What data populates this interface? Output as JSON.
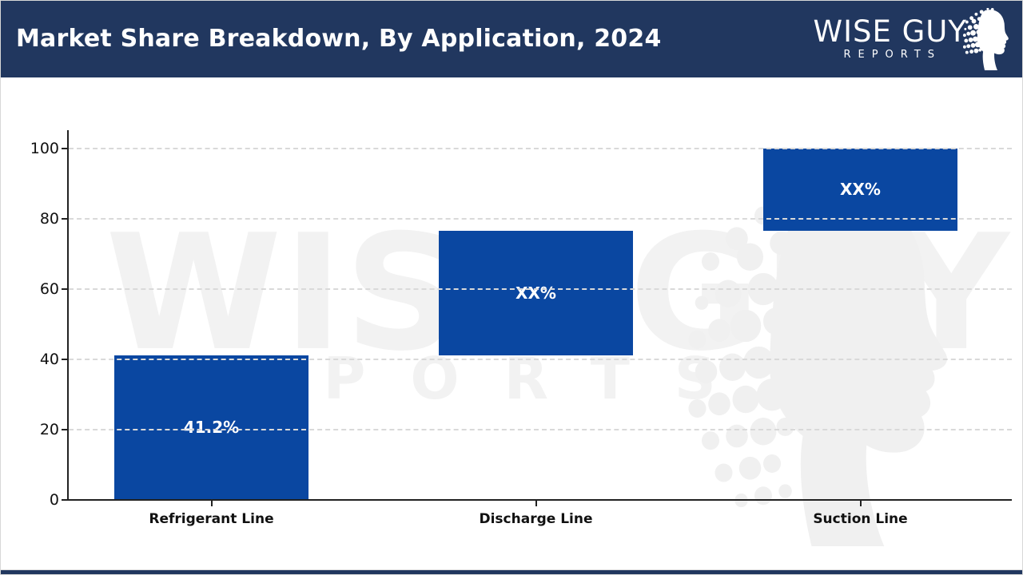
{
  "header": {
    "title": "Market Share Breakdown, By Application, 2024",
    "logo": {
      "line1": "WISE GUY",
      "line2": "REPORTS"
    },
    "bg_color": "#21375f"
  },
  "watermark": {
    "line1": "WISE GUY",
    "line2": "REPORTS"
  },
  "chart_data": {
    "type": "bar",
    "subtype": "floating-waterfall",
    "title": "Market Share Breakdown, By Application, 2024",
    "categories": [
      "Refrigerant Line",
      "Discharge Line",
      "Suction Line"
    ],
    "segments": [
      {
        "category": "Refrigerant Line",
        "start": 0,
        "end": 41.2,
        "label": "41.2%"
      },
      {
        "category": "Discharge Line",
        "start": 41.2,
        "end": 76.6,
        "label": "XX%"
      },
      {
        "category": "Suction Line",
        "start": 76.6,
        "end": 100,
        "label": "XX%"
      }
    ],
    "bar_labels": [
      "41.2%",
      "XX%",
      "XX%"
    ],
    "y_ticks": [
      0,
      20,
      40,
      60,
      80,
      100
    ],
    "ylim": [
      0,
      105
    ],
    "xlabel": "",
    "ylabel": "",
    "grid": "horizontal-dashed",
    "legend": "none",
    "bar_color": "#0a47a1",
    "bar_label_color": "#ffffff",
    "axis_color": "#222222",
    "gridline_color": "#d9d9d9"
  }
}
